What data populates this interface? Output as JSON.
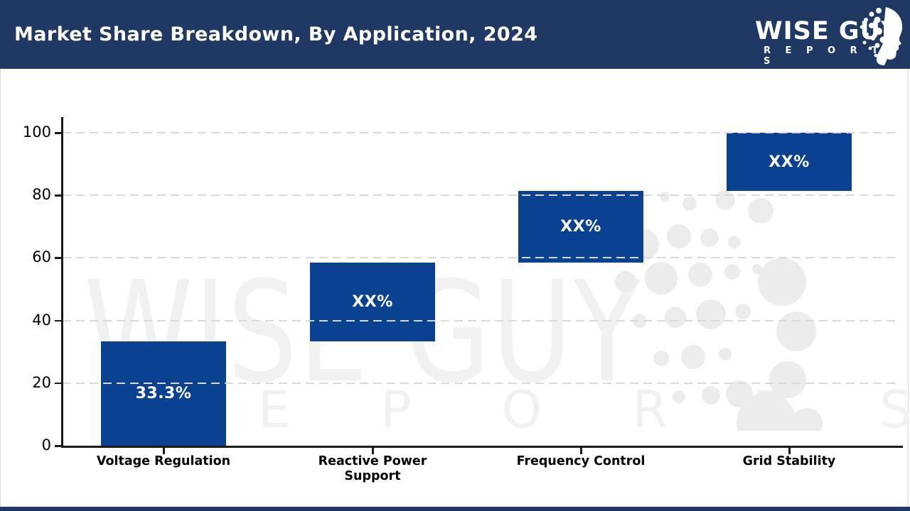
{
  "header": {
    "title": "Market Share Breakdown, By Application, 2024",
    "bg_color": "#1f3864",
    "logo": {
      "line1": "WISE GUY",
      "line2": "REPORTS"
    }
  },
  "watermark": {
    "line1": "WISE GUY",
    "line2": "REPORTS"
  },
  "footer": {
    "bg_color": "#1f3864"
  },
  "chart_data": {
    "type": "bar",
    "variant": "floating-waterfall",
    "title": "Market Share Breakdown, By Application, 2024",
    "categories": [
      "Voltage Regulation",
      "Reactive Power Support",
      "Frequency Control",
      "Grid Stability"
    ],
    "segments": [
      {
        "category": "Voltage Regulation",
        "start": 0,
        "end": 33.3,
        "label": "33.3%"
      },
      {
        "category": "Reactive Power Support",
        "start": 33.3,
        "end": 58.5,
        "label": "XX%"
      },
      {
        "category": "Frequency Control",
        "start": 58.5,
        "end": 81.4,
        "label": "XX%"
      },
      {
        "category": "Grid Stability",
        "start": 81.4,
        "end": 100,
        "label": "XX%"
      }
    ],
    "ylim": [
      0,
      100
    ],
    "yticks": [
      0,
      20,
      40,
      60,
      80,
      100
    ],
    "grid": {
      "horizontal": true,
      "style": "dashed",
      "color": "#d9d9d9",
      "above_bars": true
    },
    "bar_color": "#0b4191",
    "bar_label_color": "#ffffff",
    "axis_color": "#1a1a1a",
    "legend": null
  }
}
